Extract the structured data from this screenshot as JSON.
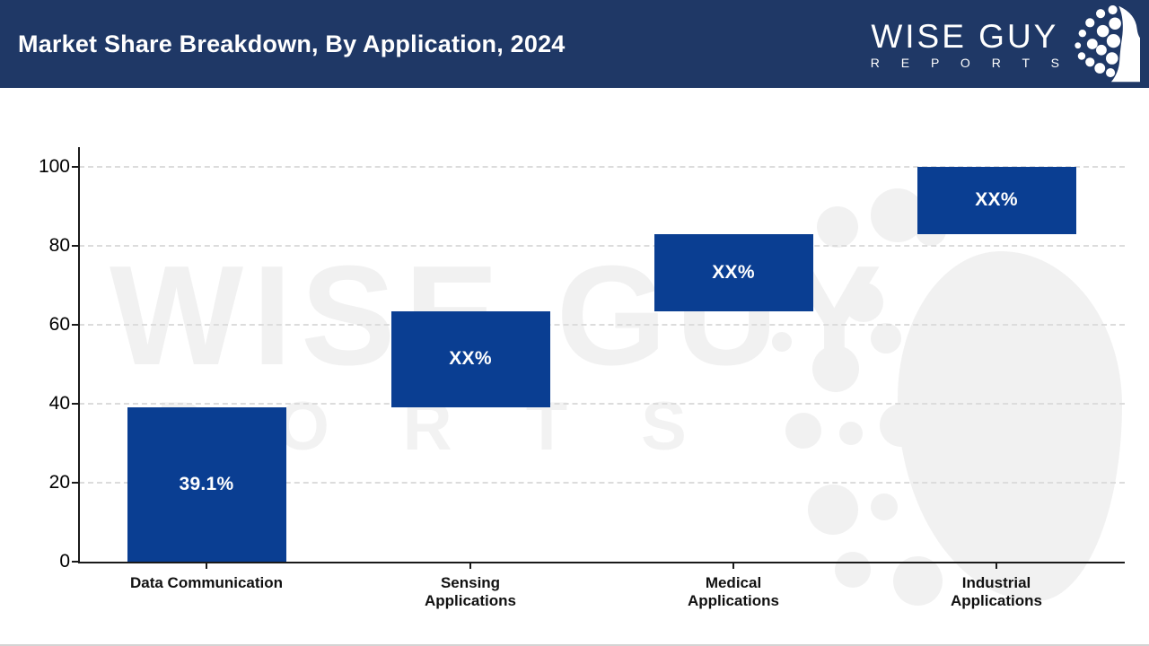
{
  "header": {
    "title": "Market Share Breakdown, By Application, 2024",
    "bg_color": "#1F3866",
    "logo": {
      "line1": "WISE GUY",
      "line2": "R E P O R T S"
    }
  },
  "watermark": {
    "line1": "WISE GUY",
    "line2": "PORTS"
  },
  "chart_data": {
    "type": "bar",
    "subtype": "waterfall",
    "title": "Market Share Breakdown, By Application, 2024",
    "categories": [
      [
        "Data Communication"
      ],
      [
        "Sensing",
        "Applications"
      ],
      [
        "Medical",
        "Applications"
      ],
      [
        "Industrial",
        "Applications"
      ]
    ],
    "segments": [
      {
        "category": "Data Communication",
        "start": 0,
        "end": 39.1,
        "label": "39.1%"
      },
      {
        "category": "Sensing Applications",
        "start": 39.1,
        "end": 63.4,
        "label": "XX%"
      },
      {
        "category": "Medical Applications",
        "start": 63.4,
        "end": 83.0,
        "label": "XX%"
      },
      {
        "category": "Industrial Applications",
        "start": 83.0,
        "end": 100,
        "label": "XX%"
      }
    ],
    "y_ticks": [
      0,
      20,
      40,
      60,
      80,
      100
    ],
    "ylim": [
      0,
      100
    ],
    "grid": "horizontal dashed",
    "legend": "none",
    "bar_color": "#0a3e92",
    "bar_label_color": "#ffffff",
    "grid_color": "#dcdcdc",
    "axis_color": "#1a1a1a"
  }
}
